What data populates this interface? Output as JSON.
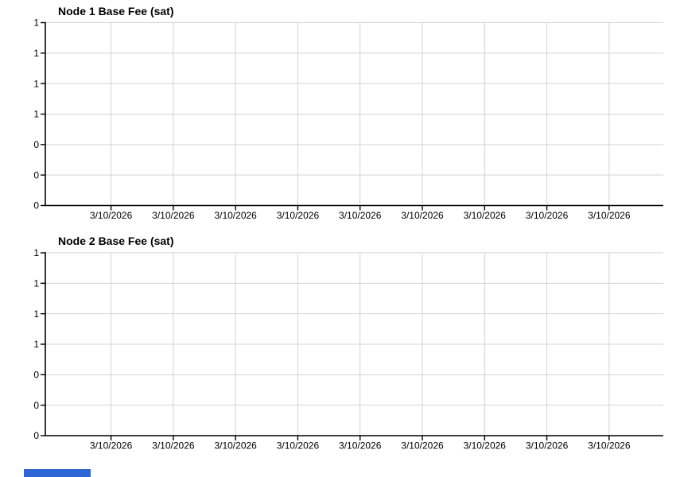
{
  "colors": {
    "background": "#ffffff",
    "grid": "#d3d3d3",
    "axis": "#000000",
    "text": "#000000",
    "partial_bar": "#2e66d6"
  },
  "chart_data": [
    {
      "type": "line",
      "title": "Node 1 Base Fee (sat)",
      "xlabel": "",
      "ylabel": "",
      "ylim": [
        0,
        1.2
      ],
      "grid": true,
      "legend": "none",
      "series": [],
      "x_tick_labels": [
        "3/10/2026",
        "3/10/2026",
        "3/10/2026",
        "3/10/2026",
        "3/10/2026",
        "3/10/2026",
        "3/10/2026",
        "3/10/2026",
        "3/10/2026"
      ],
      "y_tick_labels": [
        "1",
        "1",
        "1",
        "1",
        "0",
        "0",
        "0"
      ]
    },
    {
      "type": "line",
      "title": "Node 2 Base Fee (sat)",
      "xlabel": "",
      "ylabel": "",
      "ylim": [
        0,
        1.2
      ],
      "grid": true,
      "legend": "none",
      "series": [],
      "x_tick_labels": [
        "3/10/2026",
        "3/10/2026",
        "3/10/2026",
        "3/10/2026",
        "3/10/2026",
        "3/10/2026",
        "3/10/2026",
        "3/10/2026",
        "3/10/2026"
      ],
      "y_tick_labels": [
        "1",
        "1",
        "1",
        "1",
        "0",
        "0",
        "0"
      ]
    }
  ]
}
